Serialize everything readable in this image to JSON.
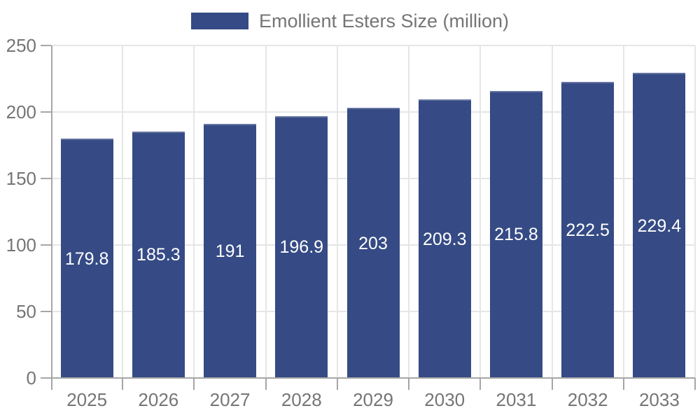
{
  "legend": {
    "label": "Emollient Esters Size (million)"
  },
  "colors": {
    "bar": "#364b85",
    "bar_label": "#ffffff",
    "axis_line": "#a6a6a6",
    "grid_line": "#e6e6e6",
    "text": "#757575",
    "background": "#ffffff"
  },
  "chart_data": {
    "type": "bar",
    "title": "Emollient Esters Size (million)",
    "categories": [
      "2025",
      "2026",
      "2027",
      "2028",
      "2029",
      "2030",
      "2031",
      "2032",
      "2033"
    ],
    "values": [
      179.8,
      185.3,
      191,
      196.9,
      203,
      209.3,
      215.8,
      222.5,
      229.4
    ],
    "xlabel": "",
    "ylabel": "",
    "ylim": [
      0,
      250
    ],
    "yticks": [
      0,
      50,
      100,
      150,
      200,
      250
    ],
    "grid": "both",
    "legend_position": "top"
  }
}
